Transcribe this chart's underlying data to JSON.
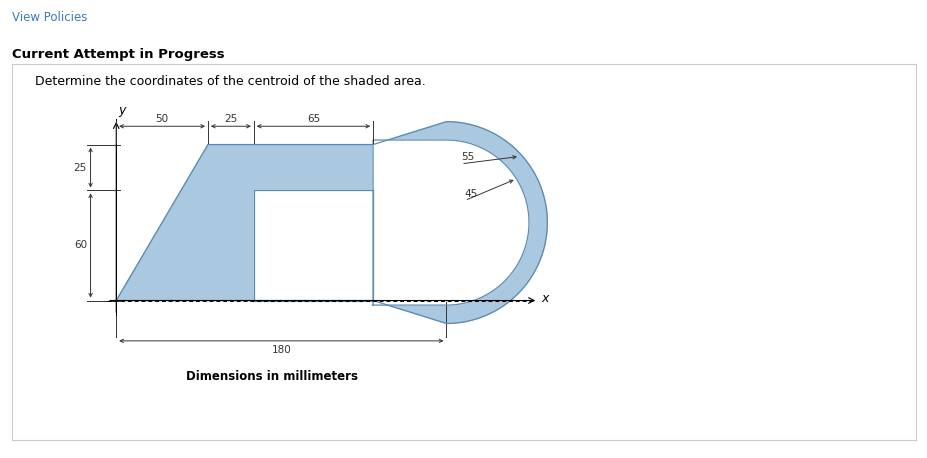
{
  "title": "Determine the coordinates of the centroid of the shaded area.",
  "subtitle": "Dimensions in millimeters",
  "header1": "View Policies",
  "header2": "Current Attempt in Progress",
  "bg_color": "#ffffff",
  "panel_bg": "#f5f5f5",
  "panel_border": "#cccccc",
  "shape_fill": "#aac8e0",
  "shape_edge": "#5a8ab0",
  "header1_color": "#3a7abf",
  "dim_color": "#333333",
  "dim_50": 50,
  "dim_25w": 25,
  "dim_65": 65,
  "dim_25h": 25,
  "dim_60": 60,
  "dim_55": 55,
  "dim_45": 45,
  "dim_180": 180
}
